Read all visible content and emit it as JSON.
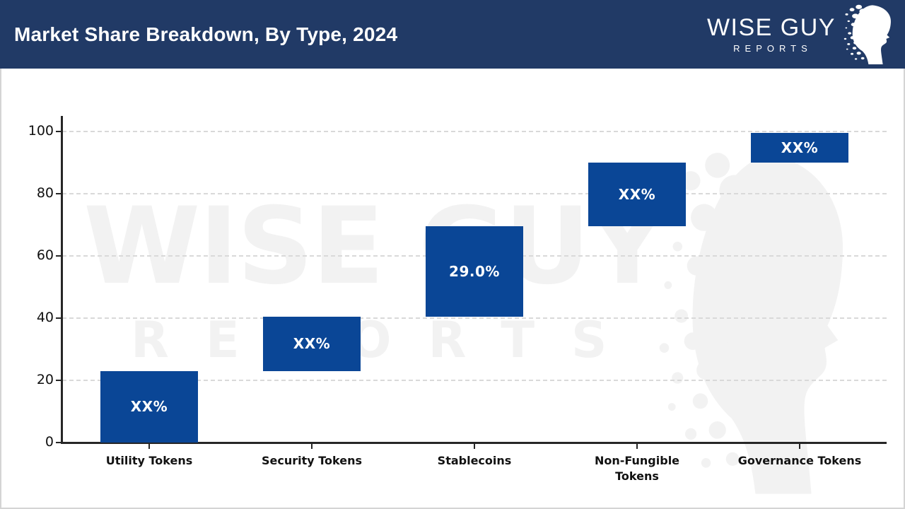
{
  "header": {
    "title": "Market Share Breakdown, By Type, 2024",
    "logo": {
      "line1": "WISE GUY",
      "line2": "REPORTS"
    }
  },
  "watermark": {
    "line1": "WISE GUY",
    "line2": "REPORTS"
  },
  "colors": {
    "header_bg": "#213a66",
    "bar": "#0a4696",
    "axis": "#262626",
    "grid": "#d9d9d9",
    "watermark": "#f2f2f2",
    "border": "#d4d4d4",
    "bar_label_text": "#ffffff",
    "title_text": "#ffffff"
  },
  "chart_data": {
    "type": "bar",
    "subtype": "waterfall",
    "title": "Market Share Breakdown, By Type, 2024",
    "categories": [
      "Utility Tokens",
      "Security Tokens",
      "Stablecoins",
      "Non-Fungible\nTokens",
      "Governance Tokens"
    ],
    "segments": [
      {
        "category": "Utility Tokens",
        "start": 0,
        "end": 23,
        "label": "XX%"
      },
      {
        "category": "Security Tokens",
        "start": 23,
        "end": 40.5,
        "label": "XX%"
      },
      {
        "category": "Stablecoins",
        "start": 40.5,
        "end": 69.5,
        "label": "29.0%"
      },
      {
        "category": "Non-Fungible Tokens",
        "start": 69.5,
        "end": 90,
        "label": "XX%"
      },
      {
        "category": "Governance Tokens",
        "start": 90,
        "end": 99.5,
        "label": "XX%"
      }
    ],
    "bar_labels": [
      "XX%",
      "XX%",
      "29.0%",
      "XX%",
      "XX%"
    ],
    "yticks": [
      0,
      20,
      40,
      60,
      80,
      100
    ],
    "ylim": [
      0,
      105
    ],
    "xlabel": "",
    "ylabel": "",
    "grid": "horizontal-dashed",
    "legend": "none"
  }
}
